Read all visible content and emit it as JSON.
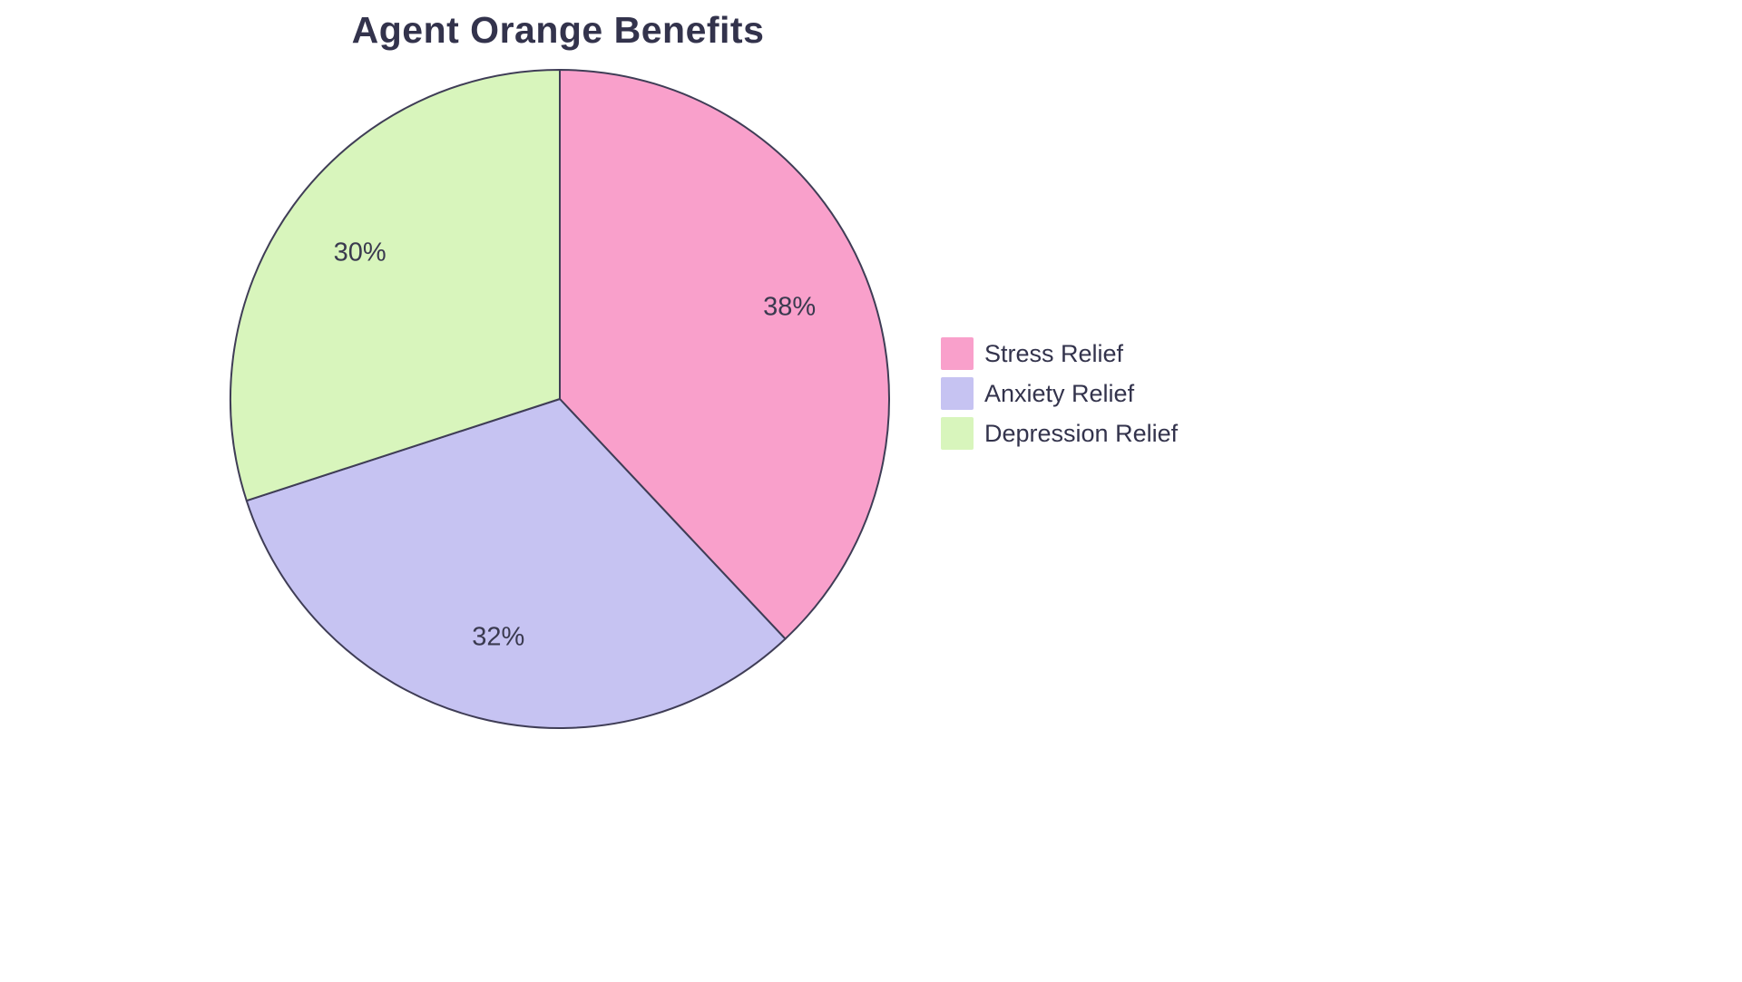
{
  "title": "Agent Orange Benefits",
  "chart_data": {
    "type": "pie",
    "title": "Agent Orange Benefits",
    "series": [
      {
        "name": "Stress Relief",
        "value": 38,
        "label": "38%",
        "color": "#F9A0CB"
      },
      {
        "name": "Anxiety Relief",
        "value": 32,
        "label": "32%",
        "color": "#C6C3F2"
      },
      {
        "name": "Depression Relief",
        "value": 30,
        "label": "30%",
        "color": "#D8F5BC"
      }
    ],
    "start_angle_deg": 0,
    "direction": "clockwise",
    "stroke_color": "#3F3D56",
    "stroke_width": 2,
    "legend_position": "right",
    "background_color": "#FFFFFF",
    "label_color": "#3A3A4F",
    "title_color": "#33334C"
  }
}
